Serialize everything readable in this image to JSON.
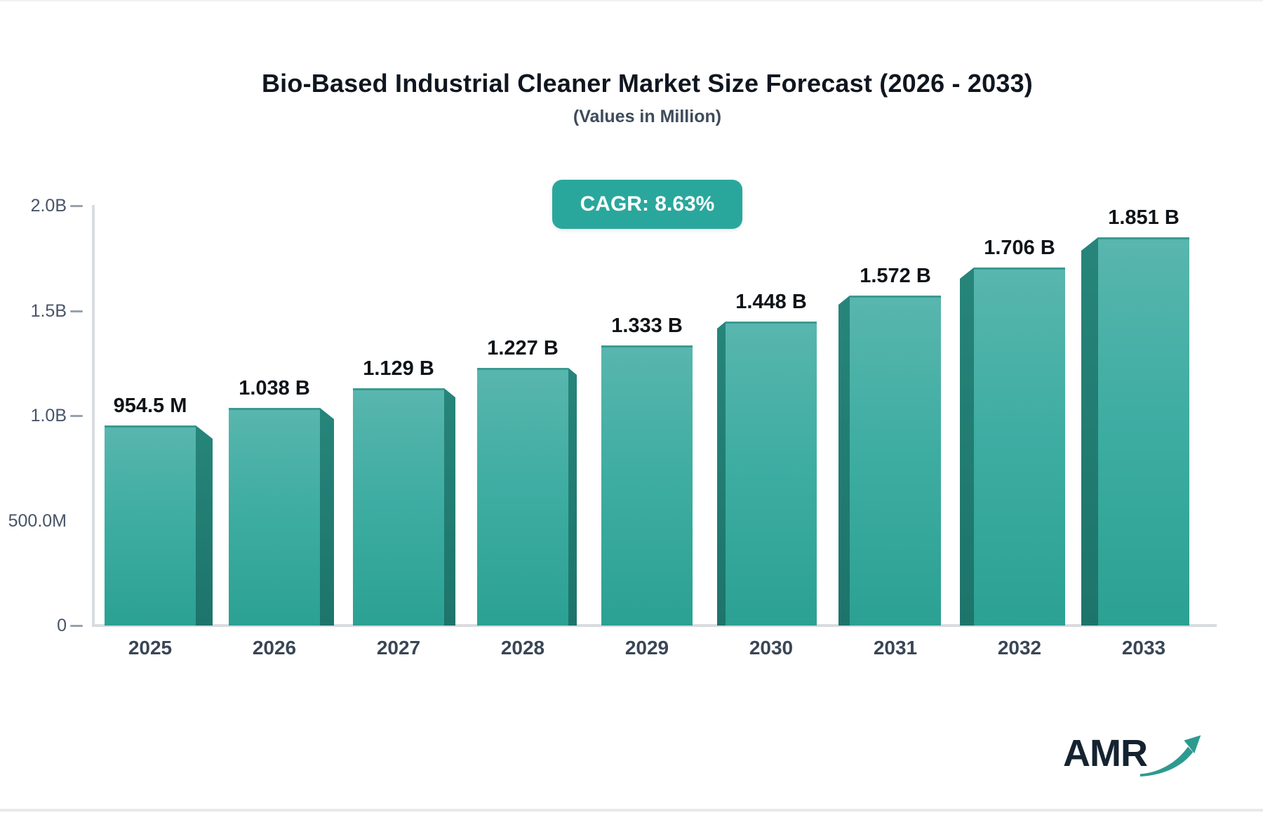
{
  "header": {
    "title": "Bio-Based Industrial Cleaner Market Size Forecast (2026 - 2033)",
    "subtitle": "(Values in Million)",
    "cagr_badge": "CAGR: 8.63%"
  },
  "chart_data": {
    "type": "bar",
    "title": "Bio-Based Industrial Cleaner Market Size Forecast (2026 - 2033)",
    "subtitle": "(Values in Million)",
    "cagr_percent": 8.63,
    "categories": [
      "2025",
      "2026",
      "2027",
      "2028",
      "2029",
      "2030",
      "2031",
      "2032",
      "2033"
    ],
    "values_billion": [
      0.9545,
      1.038,
      1.129,
      1.227,
      1.333,
      1.448,
      1.572,
      1.706,
      1.851
    ],
    "bar_labels": [
      "954.5 M",
      "1.038 B",
      "1.129 B",
      "1.227 B",
      "1.333 B",
      "1.448 B",
      "1.572 B",
      "1.706 B",
      "1.851 B"
    ],
    "xlabel": "",
    "ylabel": "",
    "ylim": [
      0,
      2.0
    ],
    "grid": false,
    "legend": "none",
    "y_axis_ticks": [
      {
        "label": "2.0B",
        "value": 2.0,
        "dash": true
      },
      {
        "label": "1.5B",
        "value": 1.5,
        "dash": true
      },
      {
        "label": "1.0B",
        "value": 1.0,
        "dash": true
      },
      {
        "label": "500.0M",
        "value": 0.5,
        "dash": false
      },
      {
        "label": "0",
        "value": 0.0,
        "dash": true
      }
    ],
    "colors": {
      "bar_face_top": "#58b6ae",
      "bar_face_bottom": "#2ba193",
      "bar_side": "#1d746b",
      "badge_background": "#2aa79c",
      "axis_line": "#d8dbe0",
      "tick_dash": "#99a1ab",
      "value_label": "#101418",
      "category_label": "#3a4656"
    },
    "style": "pseudo-3d bars, side shading vanishing toward center bar"
  },
  "footer": {
    "logo_text": "AMR",
    "logo_arrow_icon": "growth-arrow-icon",
    "logo_arrow_color": "#2d9a90"
  }
}
